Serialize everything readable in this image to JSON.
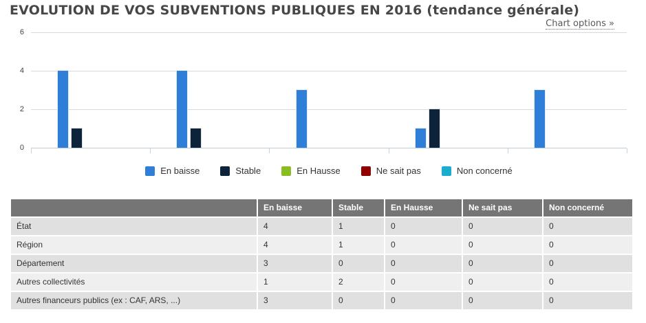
{
  "page": {
    "title": "EVOLUTION DE VOS SUBVENTIONS PUBLIQUES EN 2016 (tendance générale)",
    "chart_options_label": "Chart options »"
  },
  "chart_data": {
    "type": "bar",
    "title": "EVOLUTION DE VOS SUBVENTIONS PUBLIQUES EN 2016 (tendance générale)",
    "categories": [
      "État",
      "Région",
      "Département",
      "Autres collectivités",
      "Autres financeurs publics (ex : CAF, ARS, ...)"
    ],
    "series": [
      {
        "name": "En baisse",
        "color": "#2f7ed8",
        "values": [
          4,
          4,
          3,
          1,
          3
        ]
      },
      {
        "name": "Stable",
        "color": "#0d233a",
        "values": [
          1,
          1,
          0,
          2,
          0
        ]
      },
      {
        "name": "En Hausse",
        "color": "#8bbc21",
        "values": [
          0,
          0,
          0,
          0,
          0
        ]
      },
      {
        "name": "Ne sait pas",
        "color": "#910000",
        "values": [
          0,
          0,
          0,
          0,
          0
        ]
      },
      {
        "name": "Non concerné",
        "color": "#1aadce",
        "values": [
          0,
          0,
          0,
          0,
          0
        ]
      }
    ],
    "xlabel": "",
    "ylabel": "",
    "ylim": [
      0,
      6
    ],
    "yticks": [
      0,
      2,
      4,
      6
    ],
    "grid": true,
    "legend_position": "bottom",
    "x_category_labels_shown": false
  },
  "table": {
    "columns": [
      "",
      "En baisse",
      "Stable",
      "En Hausse",
      "Ne sait pas",
      "Non concerné"
    ],
    "rows": [
      {
        "label": "État",
        "values": [
          4,
          1,
          0,
          0,
          0
        ]
      },
      {
        "label": "Région",
        "values": [
          4,
          1,
          0,
          0,
          0
        ]
      },
      {
        "label": "Département",
        "values": [
          3,
          0,
          0,
          0,
          0
        ]
      },
      {
        "label": "Autres collectivités",
        "values": [
          1,
          2,
          0,
          0,
          0
        ]
      },
      {
        "label": "Autres financeurs publics (ex : CAF, ARS, ...)",
        "values": [
          3,
          0,
          0,
          0,
          0
        ]
      }
    ]
  },
  "colors": {
    "table_header_bg": "#757575",
    "table_row_odd_bg": "#e0e0e0",
    "table_row_even_bg": "#efefef",
    "gridline": "#d9d9d9",
    "axis_tick": "#c3d0de"
  }
}
